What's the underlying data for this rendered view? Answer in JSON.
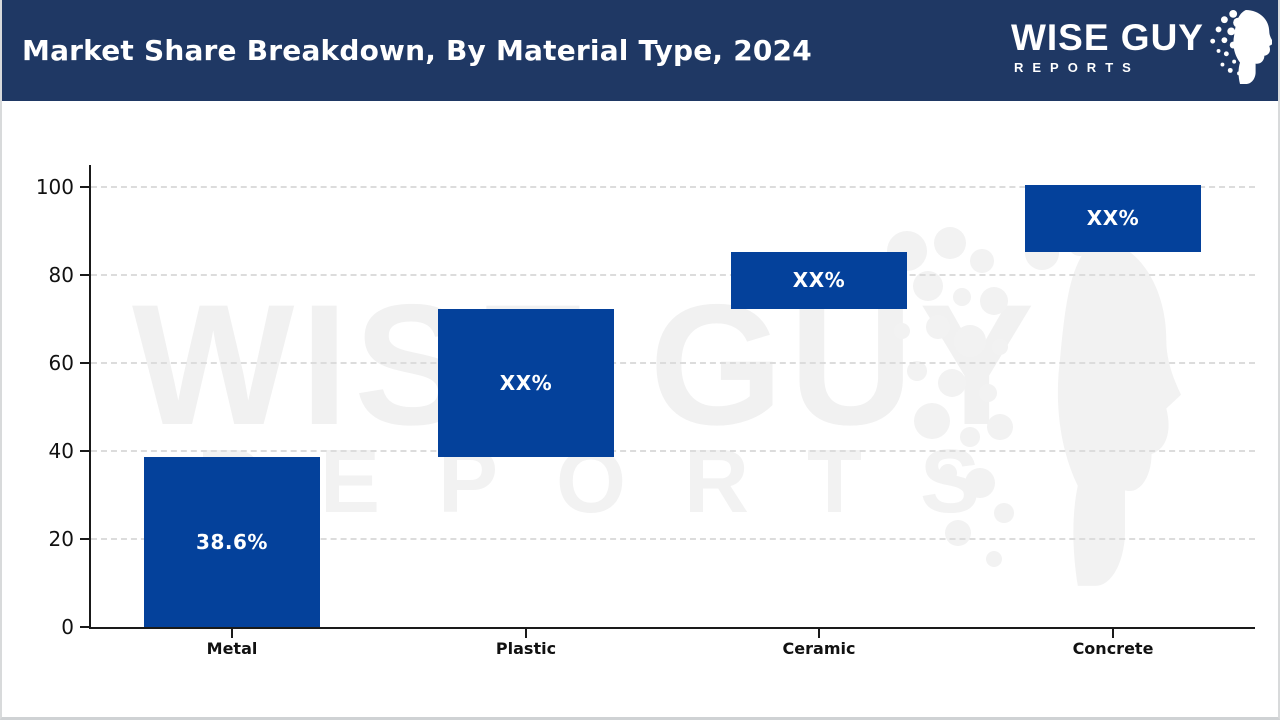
{
  "header": {
    "title": "Market Share Breakdown, By Material Type, 2024",
    "bg_color": "#1f3864",
    "logo": {
      "line1": "WISE GUY",
      "line2": "REPORTS"
    }
  },
  "watermark": {
    "line1": "WISE GUY",
    "line2": "REPORTS"
  },
  "chart_data": {
    "type": "bar",
    "subtype": "waterfall-floating-bars",
    "title": "Market Share Breakdown, By Material Type, 2024",
    "categories": [
      "Metal",
      "Plastic",
      "Ceramic",
      "Concrete"
    ],
    "segments": [
      {
        "category": "Metal",
        "start": 0,
        "end": 38.6,
        "label": "38.6%"
      },
      {
        "category": "Plastic",
        "start": 38.6,
        "end": 72.3,
        "label": "XX%"
      },
      {
        "category": "Ceramic",
        "start": 72.3,
        "end": 85.2,
        "label": "XX%"
      },
      {
        "category": "Concrete",
        "start": 85.2,
        "end": 100.5,
        "label": "XX%"
      }
    ],
    "xlabel": "",
    "ylabel": "",
    "ylim": [
      0,
      105
    ],
    "y_ticks": [
      0,
      20,
      40,
      60,
      80,
      100
    ],
    "grid": true,
    "grid_style": "dashed",
    "legend": false,
    "bar_color": "#04419b",
    "label_color": "#ffffff"
  }
}
